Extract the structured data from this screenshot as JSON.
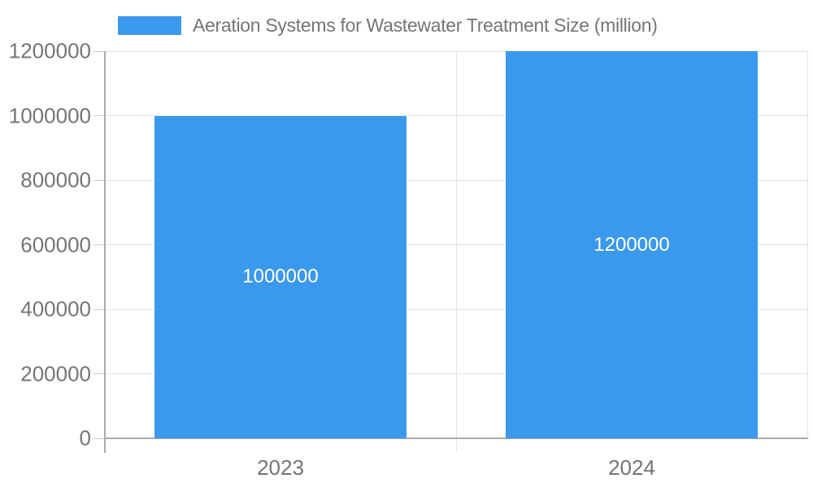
{
  "legend": {
    "label": "Aeration Systems for Wastewater Treatment Size (million)",
    "swatch_color": "#3a99ec"
  },
  "chart_data": {
    "type": "bar",
    "title": "Aeration Systems for Wastewater Treatment Size (million)",
    "categories": [
      "2023",
      "2024"
    ],
    "values": [
      1000000,
      1200000
    ],
    "bar_labels": [
      "1000000",
      "1200000"
    ],
    "xlabel": "",
    "ylabel": "",
    "ylim": [
      0,
      1200000
    ],
    "ytick_step": 200000,
    "yticks": [
      0,
      200000,
      400000,
      600000,
      800000,
      1000000,
      1200000
    ],
    "grid": true,
    "legend_position": "top-left",
    "colors": {
      "bar": "#3a99ec",
      "bar_label_text": "#ffffff",
      "axis_line": "#ababab",
      "gridline": "#e3e3e3",
      "tick_mark": "#cccccc",
      "text": "#757575",
      "background": "#ffffff"
    }
  }
}
